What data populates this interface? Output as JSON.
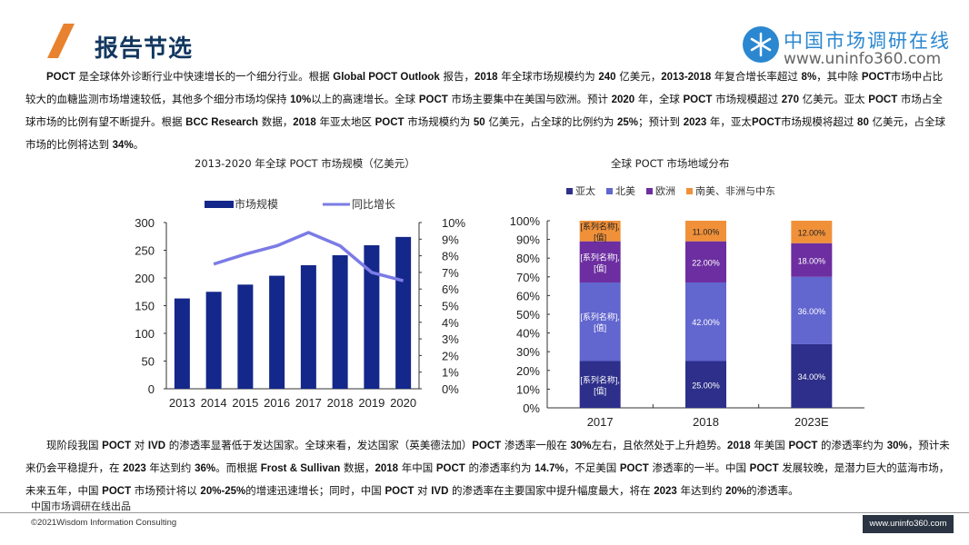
{
  "header": {
    "title": "报告节选",
    "brand_name": "中国市场调研在线",
    "brand_url": "www.uninfo360.com",
    "accent_color": "#e8822e",
    "title_color": "#12375f",
    "brand_color": "#2b87d0"
  },
  "paragraph1": [
    {
      "t": "POCT",
      "b": true
    },
    {
      "t": " 是全球体外诊断行业中快速增长的一个细分行业。根据 "
    },
    {
      "t": "Global POCT Outlook",
      "b": true
    },
    {
      "t": " 报告，"
    },
    {
      "t": "2018",
      "b": true
    },
    {
      "t": " 年全球市场规模约为 "
    },
    {
      "t": "240",
      "b": true
    },
    {
      "t": " 亿美元，"
    },
    {
      "t": "2013-2018",
      "b": true
    },
    {
      "t": " 年复合增长率超过 "
    },
    {
      "t": "8%",
      "b": true
    },
    {
      "t": "，其中除 "
    },
    {
      "t": "POCT",
      "b": true
    },
    {
      "t": "市场中占比较大的血糖监测市场增速较低，其他多个细分市场均保持 "
    },
    {
      "t": "10%",
      "b": true
    },
    {
      "t": "以上的高速增长。全球 "
    },
    {
      "t": "POCT",
      "b": true
    },
    {
      "t": " 市场主要集中在美国与欧洲。预计 "
    },
    {
      "t": "2020",
      "b": true
    },
    {
      "t": " 年，全球 "
    },
    {
      "t": "POCT",
      "b": true
    },
    {
      "t": " 市场规模超过 "
    },
    {
      "t": "270",
      "b": true
    },
    {
      "t": " 亿美元。亚太 "
    },
    {
      "t": "POCT",
      "b": true
    },
    {
      "t": " 市场占全球市场的比例有望不断提升。根据 "
    },
    {
      "t": "BCC Research",
      "b": true
    },
    {
      "t": " 数据，"
    },
    {
      "t": "2018",
      "b": true
    },
    {
      "t": " 年亚太地区 "
    },
    {
      "t": "POCT",
      "b": true
    },
    {
      "t": " 市场规模约为 "
    },
    {
      "t": "50",
      "b": true
    },
    {
      "t": " 亿美元，占全球的比例约为 "
    },
    {
      "t": "25%",
      "b": true
    },
    {
      "t": "；预计到 "
    },
    {
      "t": "2023",
      "b": true
    },
    {
      "t": " 年，亚太"
    },
    {
      "t": "POCT",
      "b": true
    },
    {
      "t": "市场规模将超过 "
    },
    {
      "t": "80",
      "b": true
    },
    {
      "t": " 亿美元，占全球市场的比例将达到 "
    },
    {
      "t": "34%",
      "b": true
    },
    {
      "t": "。"
    }
  ],
  "paragraph2": [
    {
      "t": "现阶段我国 "
    },
    {
      "t": "POCT",
      "b": true
    },
    {
      "t": " 对 "
    },
    {
      "t": "IVD",
      "b": true
    },
    {
      "t": " 的渗透率显著低于发达国家。全球来看，发达国家（英美德法加）"
    },
    {
      "t": "POCT",
      "b": true
    },
    {
      "t": " 渗透率一般在 "
    },
    {
      "t": "30%",
      "b": true
    },
    {
      "t": "左右，且依然处于上升趋势。"
    },
    {
      "t": "2018",
      "b": true
    },
    {
      "t": " 年美国 "
    },
    {
      "t": "POCT",
      "b": true
    },
    {
      "t": " 的渗透率约为 "
    },
    {
      "t": "30%",
      "b": true
    },
    {
      "t": "，预计未来仍会平稳提升，在 "
    },
    {
      "t": "2023",
      "b": true
    },
    {
      "t": " 年达到约 "
    },
    {
      "t": "36%",
      "b": true
    },
    {
      "t": "。而根据 "
    },
    {
      "t": "Frost & Sullivan",
      "b": true
    },
    {
      "t": " 数据，"
    },
    {
      "t": "2018",
      "b": true
    },
    {
      "t": " 年中国 "
    },
    {
      "t": "POCT",
      "b": true
    },
    {
      "t": " 的渗透率约为 "
    },
    {
      "t": "14.7%",
      "b": true
    },
    {
      "t": "，不足美国 "
    },
    {
      "t": "POCT",
      "b": true
    },
    {
      "t": " 渗透率的一半。中国 "
    },
    {
      "t": "POCT",
      "b": true
    },
    {
      "t": " 发展较晚，是潜力巨大的蓝海市场，未来五年，中国 "
    },
    {
      "t": "POCT",
      "b": true
    },
    {
      "t": " 市场预计将以 "
    },
    {
      "t": "20%-25%",
      "b": true
    },
    {
      "t": "的增速迅速增长；同时，中国 "
    },
    {
      "t": "POCT",
      "b": true
    },
    {
      "t": " 对 "
    },
    {
      "t": "IVD",
      "b": true
    },
    {
      "t": " 的渗透率在主要国家中提升幅度最大，将在 "
    },
    {
      "t": "2023",
      "b": true
    },
    {
      "t": " 年达到约 "
    },
    {
      "t": "20%",
      "b": true
    },
    {
      "t": "的渗透率。"
    }
  ],
  "chart_data": [
    {
      "type": "bar",
      "title": "2013-2020 年全球 POCT 市场规模（亿美元）",
      "categories": [
        "2013",
        "2014",
        "2015",
        "2016",
        "2017",
        "2018",
        "2019",
        "2020"
      ],
      "series": [
        {
          "name": "市场规模",
          "kind": "bar",
          "axis": "left",
          "color": "#14278a",
          "values": [
            163,
            175,
            188,
            204,
            223,
            241,
            259,
            274
          ]
        },
        {
          "name": "同比增长",
          "kind": "line",
          "axis": "right",
          "color": "#7b7be6",
          "values": [
            null,
            7.5,
            8.1,
            8.6,
            9.4,
            8.6,
            7.0,
            6.5
          ]
        }
      ],
      "ylim": [
        0,
        300
      ],
      "yticks": [
        "0",
        "50",
        "100",
        "150",
        "200",
        "250",
        "300"
      ],
      "y2lim": [
        0,
        10
      ],
      "y2ticks": [
        "0%",
        "1%",
        "2%",
        "3%",
        "4%",
        "5%",
        "6%",
        "7%",
        "8%",
        "9%",
        "10%"
      ],
      "legend": "top",
      "grid": false
    },
    {
      "type": "bar",
      "stacked": true,
      "title": "全球 POCT 市场地域分布",
      "categories": [
        "2017",
        "2018",
        "2023E"
      ],
      "series": [
        {
          "name": "亚太",
          "color": "#2d2f8a",
          "values": [
            25,
            25,
            34
          ],
          "labels": [
            "[系列名称],\n[值]",
            "25.00%",
            "34.00%"
          ]
        },
        {
          "name": "北美",
          "color": "#6266cf",
          "values": [
            42,
            42,
            36
          ],
          "labels": [
            "[系列名称],\n[值]",
            "42.00%",
            "36.00%"
          ]
        },
        {
          "name": "欧洲",
          "color": "#6c2ea0",
          "values": [
            22,
            22,
            18
          ],
          "labels": [
            "[系列名称],\n[值]",
            "22.00%",
            "18.00%"
          ]
        },
        {
          "name": "南美、非洲与中东",
          "color": "#f0913a",
          "values": [
            11,
            11,
            12
          ],
          "labels": [
            "[系列名称],\n[值]",
            "11.00%",
            "12.00%"
          ]
        }
      ],
      "ylim": [
        0,
        100
      ],
      "yticks": [
        "0%",
        "10%",
        "20%",
        "30%",
        "40%",
        "50%",
        "60%",
        "70%",
        "80%",
        "90%",
        "100%"
      ],
      "legend": "top",
      "grid": false
    }
  ],
  "footer": {
    "brand": "中国市场调研在线出品",
    "copyright": "©2021Wisdom Information Consulting",
    "url": "www.uninfo360.com"
  }
}
